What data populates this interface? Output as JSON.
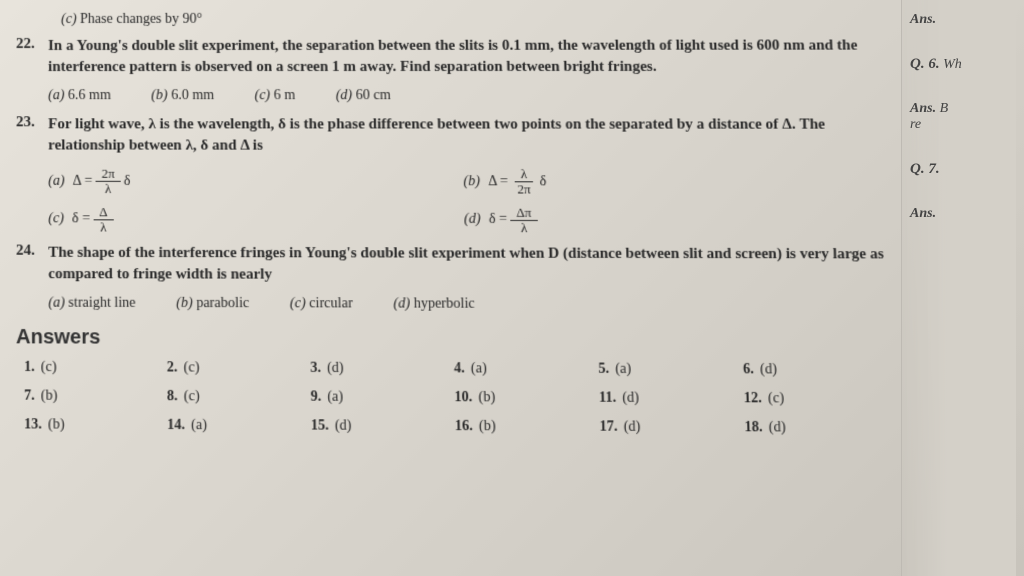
{
  "topOption": {
    "label": "(c)",
    "text": "Phase changes by 90°"
  },
  "q22": {
    "number": "22.",
    "text": "In a Young's double slit experiment, the separation between the slits is 0.1 mm, the wavelength of light used is 600 nm and the interference pattern is observed on a screen 1 m away. Find separation between bright fringes.",
    "options": {
      "a": {
        "label": "(a)",
        "text": "6.6 mm"
      },
      "b": {
        "label": "(b)",
        "text": "6.0 mm"
      },
      "c": {
        "label": "(c)",
        "text": "6 m"
      },
      "d": {
        "label": "(d)",
        "text": "60 cm"
      }
    }
  },
  "q23": {
    "number": "23.",
    "text": "For light wave, λ is the wavelength, δ is the phase difference between two points on the separated by a distance of Δ. The relationship between λ, δ and Δ is",
    "options": {
      "a": {
        "label": "(a)",
        "eq": "Δ = ",
        "num": "2π",
        "den": "λ",
        "suffix": "δ"
      },
      "b": {
        "label": "(b)",
        "eq": "Δ = ",
        "num": "λ",
        "den": "2π",
        "suffix": "δ"
      },
      "c": {
        "label": "(c)",
        "eq": "δ = ",
        "num": "Δ",
        "den": "λ",
        "suffix": ""
      },
      "d": {
        "label": "(d)",
        "eq": "δ = ",
        "num": "Δπ",
        "den": "λ",
        "suffix": ""
      }
    }
  },
  "q24": {
    "number": "24.",
    "text": "The shape of the interference fringes in Young's double slit experiment when D (distance between slit and screen) is very large as compared to fringe width is nearly",
    "options": {
      "a": {
        "label": "(a)",
        "text": "straight line"
      },
      "b": {
        "label": "(b)",
        "text": "parabolic"
      },
      "c": {
        "label": "(c)",
        "text": "circular"
      },
      "d": {
        "label": "(d)",
        "text": "hyperbolic"
      }
    }
  },
  "answersHeading": "Answers",
  "answers": [
    {
      "num": "1.",
      "val": "(c)"
    },
    {
      "num": "2.",
      "val": "(c)"
    },
    {
      "num": "3.",
      "val": "(d)"
    },
    {
      "num": "4.",
      "val": "(a)"
    },
    {
      "num": "5.",
      "val": "(a)"
    },
    {
      "num": "6.",
      "val": "(d)"
    },
    {
      "num": "7.",
      "val": "(b)"
    },
    {
      "num": "8.",
      "val": "(c)"
    },
    {
      "num": "9.",
      "val": "(a)"
    },
    {
      "num": "10.",
      "val": "(b)"
    },
    {
      "num": "11.",
      "val": "(d)"
    },
    {
      "num": "12.",
      "val": "(c)"
    },
    {
      "num": "13.",
      "val": "(b)"
    },
    {
      "num": "14.",
      "val": "(a)"
    },
    {
      "num": "15.",
      "val": "(d)"
    },
    {
      "num": "16.",
      "val": "(b)"
    },
    {
      "num": "17.",
      "val": "(d)"
    },
    {
      "num": "18.",
      "val": "(d)"
    }
  ],
  "margin": {
    "ans1": "Ans.",
    "q6": "Q. 6.",
    "wh": "Wh",
    "ans2": "Ans.",
    "b": "B",
    "re": "re",
    "q7": "Q. 7.",
    "ans3": "Ans."
  }
}
